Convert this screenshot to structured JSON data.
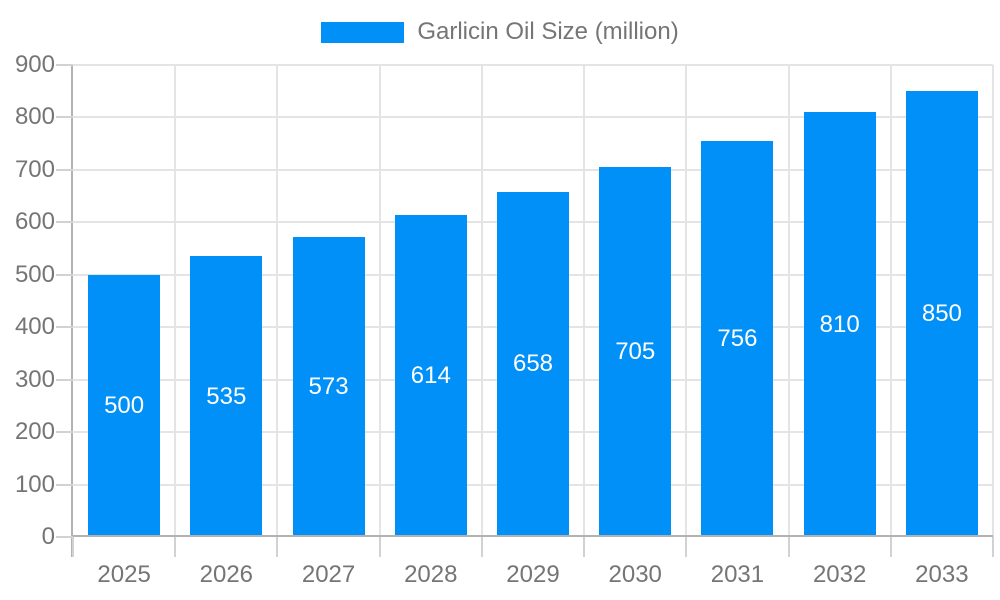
{
  "chart_data": {
    "type": "bar",
    "title": "",
    "categories": [
      "2025",
      "2026",
      "2027",
      "2028",
      "2029",
      "2030",
      "2031",
      "2032",
      "2033"
    ],
    "series": [
      {
        "name": "Garlicin Oil Size (million)",
        "values": [
          500,
          535,
          573,
          614,
          658,
          705,
          756,
          810,
          850
        ]
      }
    ],
    "xlabel": "",
    "ylabel": "",
    "ylim": [
      0,
      900
    ],
    "yticks": [
      0,
      100,
      200,
      300,
      400,
      500,
      600,
      700,
      800,
      900
    ],
    "grid": true,
    "legend_position": "top",
    "colors": {
      "bar": "#0190f8",
      "value_label": "#ffffff",
      "axis_text": "#757575",
      "axis_line": "#b2b2b2",
      "gridline": "#e4e4e4",
      "tick": "#d2d2d2",
      "background": "#ffffff"
    }
  }
}
